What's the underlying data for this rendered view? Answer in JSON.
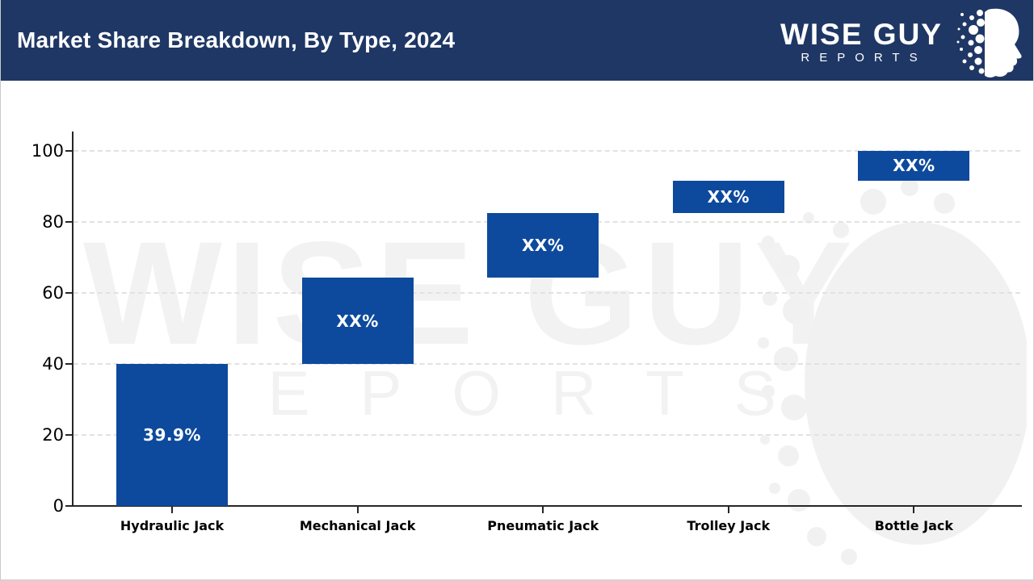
{
  "header": {
    "title": "Market Share Breakdown, By Type, 2024",
    "logo": {
      "line1": "WISE GUY",
      "line2": "REPORTS"
    }
  },
  "watermark": {
    "line1": "WISE GUY",
    "line2": "REPORTS"
  },
  "colors": {
    "header_bg": "#1f3765",
    "bar": "#0d4a9d",
    "bar_label": "#ffffff",
    "gridline": "#e2e2e2",
    "axis": "#262626",
    "title_text": "#ffffff",
    "watermark": "#f2f2f2"
  },
  "chart_data": {
    "type": "bar",
    "subtype": "waterfall",
    "title": "Market Share Breakdown, By Type, 2024",
    "categories": [
      "Hydraulic Jack",
      "Mechanical Jack",
      "Pneumatic Jack",
      "Trolley Jack",
      "Bottle Jack"
    ],
    "segments": [
      {
        "start": 0,
        "end": 39.9,
        "label": "39.9%"
      },
      {
        "start": 39.9,
        "end": 64.3,
        "label": "XX%"
      },
      {
        "start": 64.3,
        "end": 82.6,
        "label": "XX%"
      },
      {
        "start": 82.6,
        "end": 91.7,
        "label": "XX%"
      },
      {
        "start": 91.7,
        "end": 100,
        "label": "XX%"
      }
    ],
    "xlabel": "",
    "ylabel": "",
    "yticks": [
      0,
      20,
      40,
      60,
      80,
      100
    ],
    "ylim": [
      0,
      105
    ],
    "grid": "horizontal-dashed",
    "legend": "none"
  }
}
